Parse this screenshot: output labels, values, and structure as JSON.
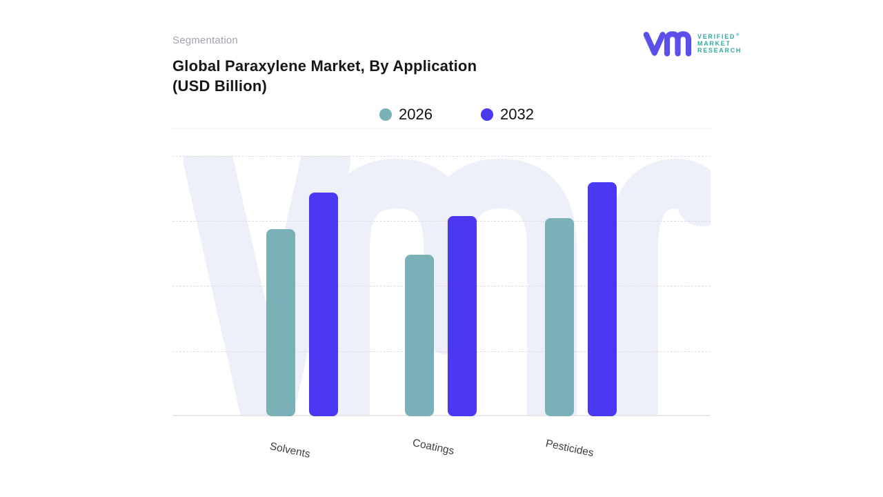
{
  "header": {
    "eyebrow": "Segmentation",
    "title_line1": "Global Paraxylene Market, By Application",
    "title_line2": "(USD Billion)"
  },
  "logo": {
    "words": [
      "VERIFIED",
      "MARKET",
      "RESEARCH"
    ],
    "registered_mark": "®",
    "mark_color": "#5A4FE8",
    "text_color": "#2FA9A3"
  },
  "legend": {
    "items": [
      {
        "label": "2026",
        "color": "#7AB1B7"
      },
      {
        "label": "2032",
        "color": "#4A38F2"
      }
    ]
  },
  "chart_data": {
    "type": "bar",
    "title": "Global Paraxylene Market, By Application (USD Billion)",
    "categories": [
      "Solvents",
      "Coatings",
      "Pesticides"
    ],
    "series": [
      {
        "name": "2026",
        "color": "#7AB1B7",
        "values": [
          72,
          62,
          76
        ]
      },
      {
        "name": "2032",
        "color": "#4A38F2",
        "values": [
          86,
          77,
          90
        ]
      }
    ],
    "xlabel": "",
    "ylabel": "",
    "ylim": [
      0,
      100
    ],
    "y_axis_tick_labels_visible": false,
    "gridlines": "horizontal-dashed",
    "legend_position": "top-center",
    "watermark_text": "vmr"
  },
  "colors": {
    "gridline": "#DCDCE4",
    "baseline": "#E8E8EC",
    "watermark": "#EDEFF9"
  }
}
